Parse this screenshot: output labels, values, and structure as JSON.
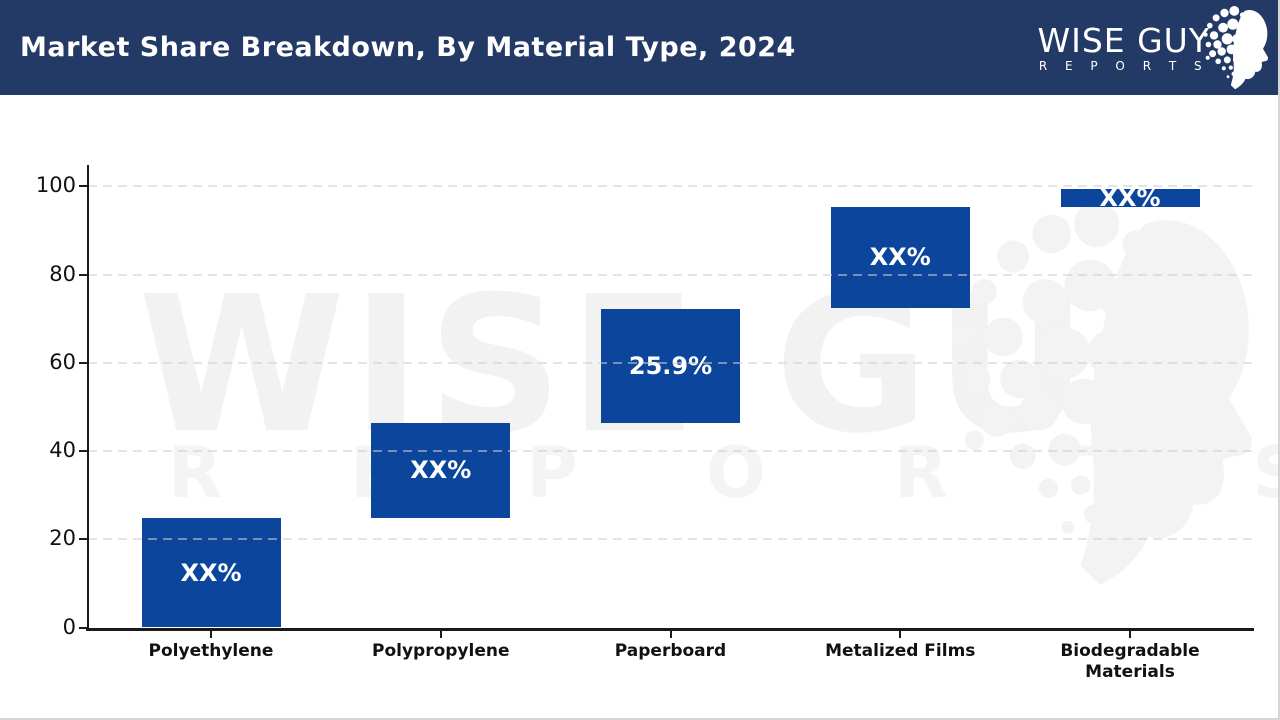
{
  "header": {
    "title": "Market Share Breakdown, By Material Type, 2024",
    "logo": {
      "line1": "WISE GUY",
      "line2": "R E P O R T S"
    }
  },
  "watermark": {
    "line1": "WISE GUY",
    "line2": "R E P O R T S"
  },
  "colors": {
    "header_bg": "#233a66",
    "bar": "#0b469c",
    "bar_label": "#ffffff",
    "axis": "#1a1a1a",
    "gridline": "#dcdcdc",
    "watermark": "#f2f2f2",
    "title_text": "#ffffff"
  },
  "chart_data": {
    "type": "bar",
    "subtype": "waterfall",
    "title": "Market Share Breakdown, By Material Type, 2024",
    "xlabel": "",
    "ylabel": "",
    "ylim": [
      0,
      105
    ],
    "yticks": [
      0,
      20,
      40,
      60,
      80,
      100
    ],
    "grid": true,
    "legend": "none",
    "categories": [
      "Polyethylene",
      "Polypropylene",
      "Paperboard",
      "Metalized Films",
      "Biodegradable Materials"
    ],
    "bars": [
      {
        "category": "Polyethylene",
        "start": 0,
        "end": 24.8,
        "label": "XX%"
      },
      {
        "category": "Polypropylene",
        "start": 24.8,
        "end": 46.4,
        "label": "XX%"
      },
      {
        "category": "Paperboard",
        "start": 46.4,
        "end": 72.3,
        "label": "25.9%"
      },
      {
        "category": "Metalized Films",
        "start": 72.4,
        "end": 95.4,
        "label": "XX%"
      },
      {
        "category": "Biodegradable Materials",
        "start": 95.4,
        "end": 99.4,
        "label": "XX%"
      }
    ]
  }
}
